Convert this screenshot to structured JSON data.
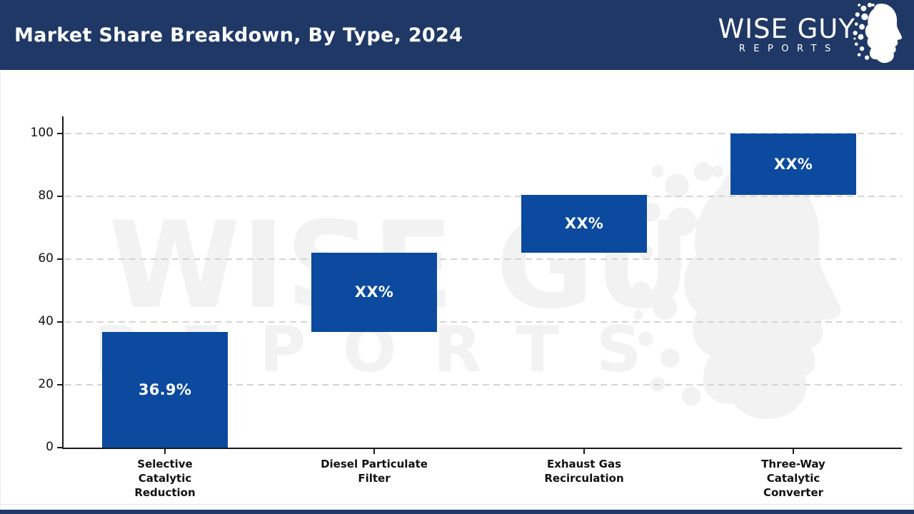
{
  "header": {
    "title": "Market Share Breakdown, By Type, 2024",
    "brand_line1": "WISE GUY",
    "brand_line2": "REPORTS",
    "bg_color": "#1f3866"
  },
  "watermark": {
    "line1": "WISE GUY",
    "line2": "REPORTS",
    "color": "#f2f2f2"
  },
  "chart_data": {
    "type": "bar",
    "subtype": "waterfall",
    "title": "Market Share Breakdown, By Type, 2024",
    "categories": [
      "Selective Catalytic Reduction",
      "Diesel Particulate Filter",
      "Exhaust Gas Recirculation",
      "Three-Way Catalytic Converter"
    ],
    "categories_lines": [
      [
        "Selective",
        "Catalytic",
        "Reduction"
      ],
      [
        "Diesel Particulate",
        "Filter"
      ],
      [
        "Exhaust Gas",
        "Recirculation"
      ],
      [
        "Three-Way",
        "Catalytic",
        "Converter"
      ]
    ],
    "segments": [
      [
        0,
        36.9
      ],
      [
        36.9,
        62
      ],
      [
        62,
        80.5
      ],
      [
        80.5,
        100
      ]
    ],
    "bar_labels": [
      "36.9%",
      "XX%",
      "XX%",
      "XX%"
    ],
    "first_bar_value_pct": 36.9,
    "ylim": [
      0,
      100
    ],
    "yticks": [
      0,
      20,
      40,
      60,
      80,
      100
    ],
    "grid": "dashed-horizontal",
    "legend": "none",
    "bar_color": "#0b4a9e",
    "bar_label_color": "#ffffff",
    "axis_color": "#1a1a1a",
    "grid_color": "#d4d4d4"
  }
}
